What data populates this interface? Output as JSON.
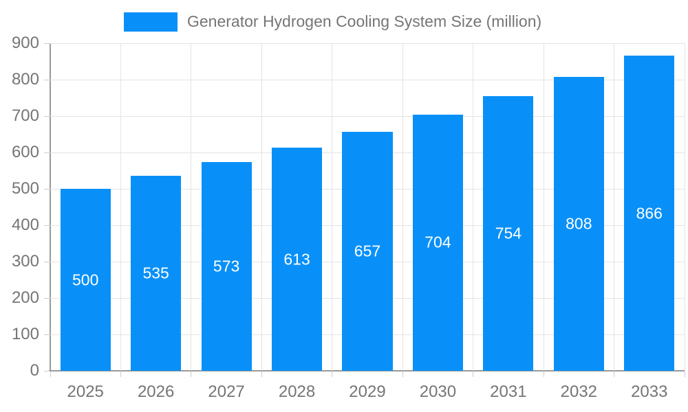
{
  "page": {
    "background": "#ffffff"
  },
  "legend": {
    "label": "Generator Hydrogen Cooling System Size (million)",
    "swatch_color": "#0990f8"
  },
  "chart_data": {
    "type": "bar",
    "title": "Generator Hydrogen Cooling System Size (million)",
    "series_name": "Generator Hydrogen Cooling System Size (million)",
    "categories": [
      "2025",
      "2026",
      "2027",
      "2028",
      "2029",
      "2030",
      "2031",
      "2032",
      "2033"
    ],
    "values": [
      500,
      535,
      573,
      613,
      657,
      704,
      754,
      808,
      866
    ],
    "xlabel": "",
    "ylabel": "",
    "ylim": [
      0,
      900
    ],
    "y_ticks": [
      0,
      100,
      200,
      300,
      400,
      500,
      600,
      700,
      800,
      900
    ],
    "grid": true,
    "legend_position": "top-center",
    "value_label_position": "inside-middle",
    "bar_color": "#0990f8",
    "value_label_color": "#ffffff"
  },
  "style": {
    "axis_line_color": "#999999",
    "gridline_color": "#e4e4e4",
    "tick_color": "#cccccc",
    "tick_label_color": "#757575"
  }
}
